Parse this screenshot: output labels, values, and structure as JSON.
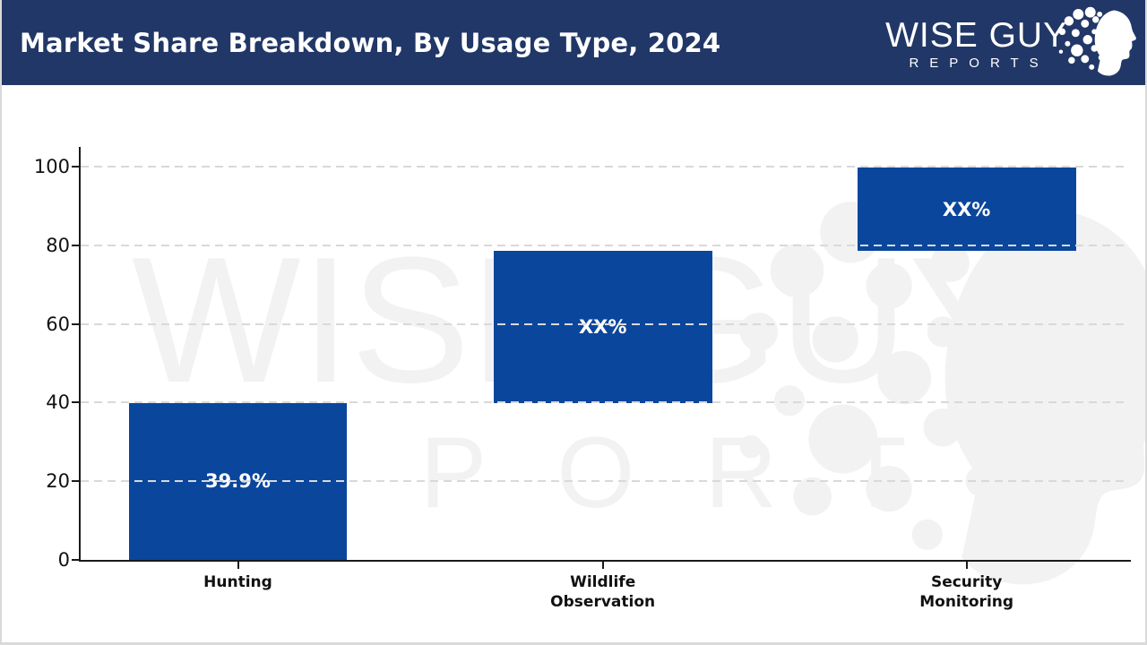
{
  "header": {
    "title": "Market Share Breakdown, By Usage Type, 2024",
    "brand_line1": "WISE GUY",
    "brand_line2": "REPORTS"
  },
  "watermark": {
    "line1": "WISE GUY",
    "line2": "REPORTS"
  },
  "colors": {
    "header_navy": "#213767",
    "bar_blue": "#0a469c",
    "gridline": "#d9d9d9",
    "axis": "#1a1a1a",
    "watermark_gray": "#f2f2f3",
    "page_border": "#d9d9d9"
  },
  "chart_data": {
    "type": "bar",
    "variant": "floating-segment-bars",
    "title": "Market Share Breakdown, By Usage Type, 2024",
    "categories": [
      "Hunting",
      "Wildlife Observation",
      "Security Monitoring"
    ],
    "category_label_lines": [
      [
        "Hunting"
      ],
      [
        "Wildlife",
        "Observation"
      ],
      [
        "Security",
        "Monitoring"
      ]
    ],
    "bars": [
      {
        "category": "Hunting",
        "start": 0,
        "end": 39.9,
        "label": "39.9%"
      },
      {
        "category": "Wildlife Observation",
        "start": 39.9,
        "end": 78.6,
        "label": "XX%"
      },
      {
        "category": "Security Monitoring",
        "start": 78.6,
        "end": 99.7,
        "label": "XX%"
      }
    ],
    "yticks": [
      0,
      20,
      40,
      60,
      80,
      100
    ],
    "ylim": [
      0,
      105
    ],
    "xlabel": "",
    "ylabel": "",
    "grid": true,
    "grid_style": "dashed",
    "grid_above_bars": true,
    "legend": false,
    "bar_color": "#0a469c",
    "value_label_color": "#ffffff"
  }
}
